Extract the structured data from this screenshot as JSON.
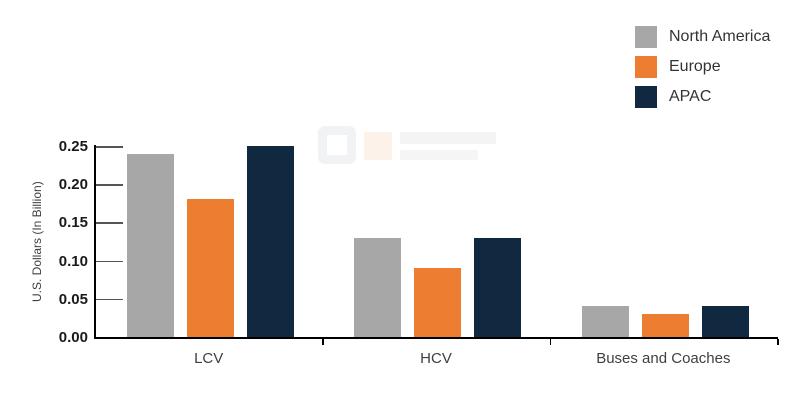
{
  "chart_data": {
    "type": "bar",
    "title": "",
    "categories": [
      "LCV",
      "HCV",
      "Buses and Coaches"
    ],
    "series": [
      {
        "name": "North America",
        "color": "#a7a7a7",
        "values": [
          0.24,
          0.13,
          0.04
        ]
      },
      {
        "name": "Europe",
        "color": "#ed7d31",
        "values": [
          0.18,
          0.09,
          0.03
        ]
      },
      {
        "name": "APAC",
        "color": "#102940",
        "values": [
          0.25,
          0.13,
          0.04
        ]
      }
    ],
    "xlabel": "",
    "ylabel": "U.S. Dollars (In Billion)",
    "ylim": [
      0,
      0.25
    ],
    "yticks": [
      "0.00",
      "0.05",
      "0.10",
      "0.15",
      "0.20",
      "0.25"
    ],
    "grid": false,
    "legend_position": "top-right",
    "axis_color": "#000000",
    "tick_stub_color": "#555555",
    "tick_label_color": "#1a1a1a",
    "category_label_color": "#3f3f3f"
  }
}
